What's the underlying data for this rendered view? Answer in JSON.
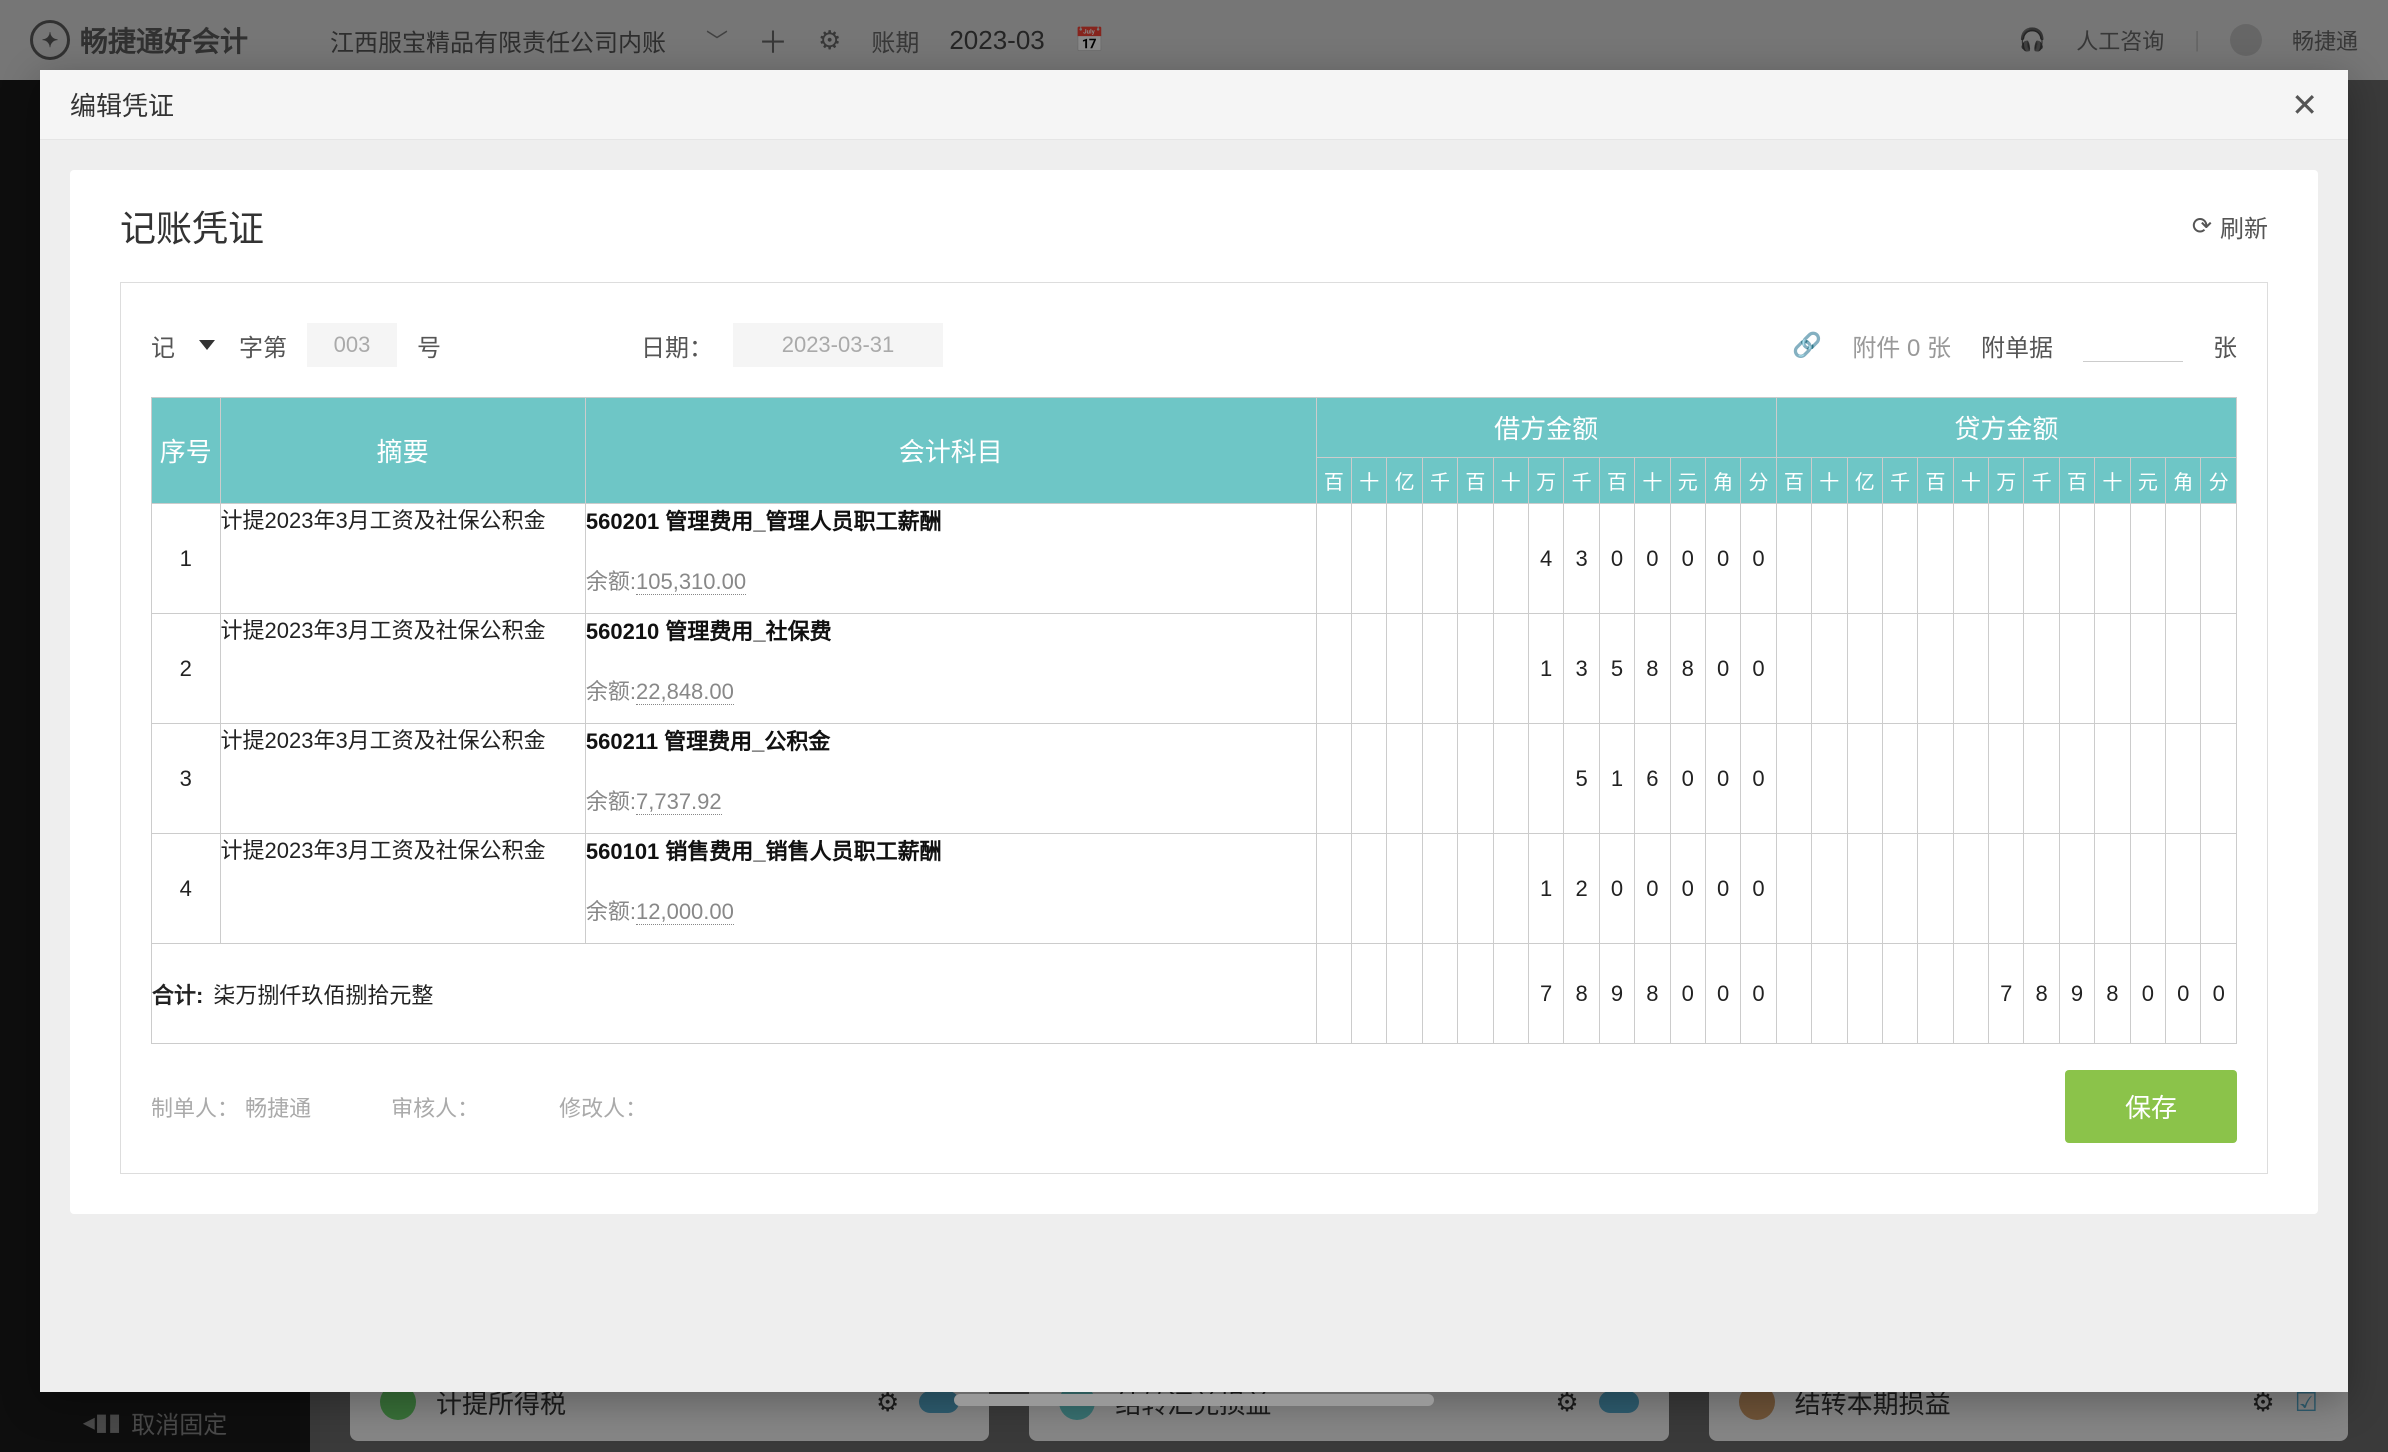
{
  "topbar": {
    "logo_text": "畅捷通好会计",
    "company": "江西服宝精品有限责任公司内账",
    "period_label": "账期",
    "period_value": "2023-03",
    "support_label": "人工咨询",
    "user_name": "畅捷通"
  },
  "sidebar": {
    "cancel_fix": "取消固定"
  },
  "background_cards": {
    "card1_label": "计提所得税",
    "card2_label": "结转汇兑损益",
    "card3_label": "结转本期损益"
  },
  "modal": {
    "title": "编辑凭证",
    "panel_title": "记账凭证",
    "refresh_label": "刷新",
    "meta": {
      "type_char": "记",
      "type_suffix": "字第",
      "number_placeholder": "003",
      "number_suffix": "号",
      "date_label": "日期：",
      "date_placeholder": "2023-03-31",
      "attach_label": "附件 0 张",
      "attach2_label": "附单据",
      "attach2_suffix": "张"
    },
    "columns": {
      "seq": "序号",
      "summary": "摘要",
      "account": "会计科目",
      "debit": "借方金额",
      "credit": "贷方金额",
      "digit_labels": [
        "百",
        "十",
        "亿",
        "千",
        "百",
        "十",
        "万",
        "千",
        "百",
        "十",
        "元",
        "角",
        "分"
      ]
    },
    "rows": [
      {
        "seq": "1",
        "summary": "计提2023年3月工资及社保公积金",
        "account": "560201 管理费用_管理人员职工薪酬",
        "balance_label": "余额:",
        "balance": "105,310.00",
        "debit": [
          "",
          "",
          "",
          "",
          "",
          "",
          "4",
          "3",
          "0",
          "0",
          "0",
          "0",
          "0"
        ],
        "credit": [
          "",
          "",
          "",
          "",
          "",
          "",
          "",
          "",
          "",
          "",
          "",
          "",
          ""
        ]
      },
      {
        "seq": "2",
        "summary": "计提2023年3月工资及社保公积金",
        "account": "560210 管理费用_社保费",
        "balance_label": "余额:",
        "balance": "22,848.00",
        "debit": [
          "",
          "",
          "",
          "",
          "",
          "",
          "1",
          "3",
          "5",
          "8",
          "8",
          "0",
          "0"
        ],
        "credit": [
          "",
          "",
          "",
          "",
          "",
          "",
          "",
          "",
          "",
          "",
          "",
          "",
          ""
        ]
      },
      {
        "seq": "3",
        "summary": "计提2023年3月工资及社保公积金",
        "account": "560211 管理费用_公积金",
        "balance_label": "余额:",
        "balance": "7,737.92",
        "debit": [
          "",
          "",
          "",
          "",
          "",
          "",
          "",
          "5",
          "1",
          "6",
          "0",
          "0",
          "0"
        ],
        "credit": [
          "",
          "",
          "",
          "",
          "",
          "",
          "",
          "",
          "",
          "",
          "",
          "",
          ""
        ]
      },
      {
        "seq": "4",
        "summary": "计提2023年3月工资及社保公积金",
        "account": "560101 销售费用_销售人员职工薪酬",
        "balance_label": "余额:",
        "balance": "12,000.00",
        "debit": [
          "",
          "",
          "",
          "",
          "",
          "",
          "1",
          "2",
          "0",
          "0",
          "0",
          "0",
          "0"
        ],
        "credit": [
          "",
          "",
          "",
          "",
          "",
          "",
          "",
          "",
          "",
          "",
          "",
          "",
          ""
        ]
      }
    ],
    "total": {
      "label": "合计:",
      "text": "柒万捌仟玖佰捌拾元整",
      "debit": [
        "",
        "",
        "",
        "",
        "",
        "",
        "7",
        "8",
        "9",
        "8",
        "0",
        "0",
        "0"
      ],
      "credit": [
        "",
        "",
        "",
        "",
        "",
        "",
        "7",
        "8",
        "9",
        "8",
        "0",
        "0",
        "0"
      ]
    },
    "footer": {
      "maker_label": "制单人：",
      "maker": "畅捷通",
      "auditor_label": "审核人：",
      "modifier_label": "修改人：",
      "save_btn": "保存"
    }
  },
  "style": {
    "header_bg": "#6ec6c6",
    "save_btn_bg": "#8bc34a",
    "sep_colors": {
      "blue": "#5a8fd6",
      "red": "#d66",
      "gray": "#dddddd"
    },
    "digit_sep_pattern": [
      "",
      "gray",
      "blue",
      "gray",
      "gray",
      "blue",
      "gray",
      "gray",
      "blue",
      "gray",
      "red",
      "gray",
      "gray"
    ]
  }
}
